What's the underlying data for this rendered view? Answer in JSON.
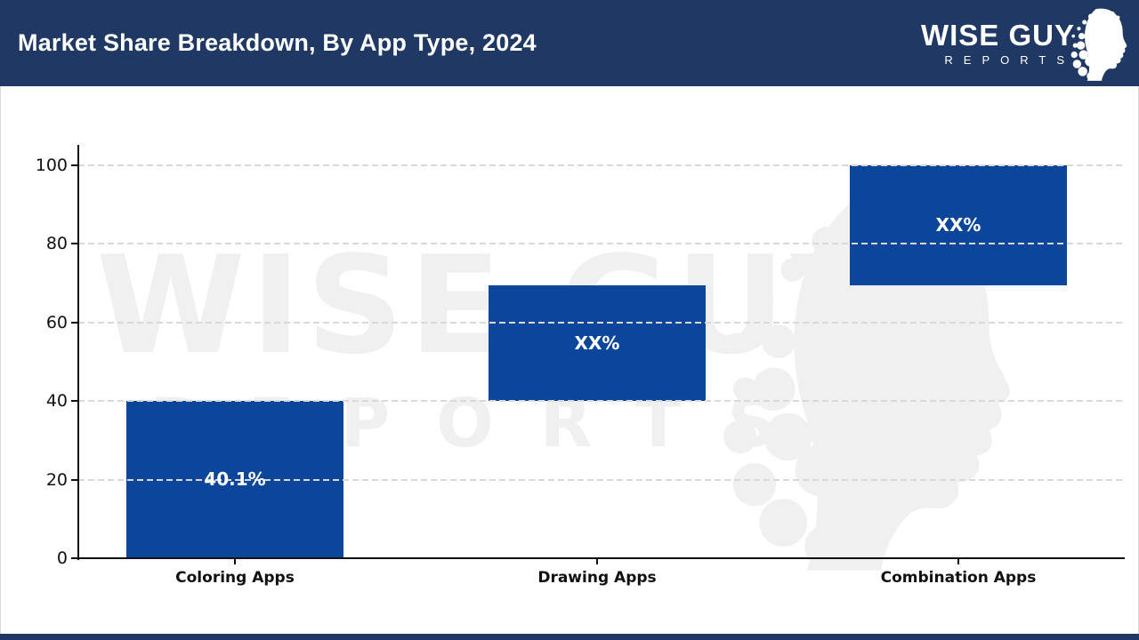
{
  "header": {
    "title": "Market Share Breakdown, By App Type, 2024",
    "logo": {
      "line1": "WISE GUY",
      "line2": "REPORTS"
    }
  },
  "watermark": {
    "line1": "WISE GUY",
    "line2": "REPORTS"
  },
  "chart_data": {
    "type": "bar",
    "subtype": "floating-waterfall",
    "title": "Market Share Breakdown, By App Type, 2024",
    "categories": [
      "Coloring Apps",
      "Drawing Apps",
      "Combination Apps"
    ],
    "bars": [
      {
        "category": "Coloring Apps",
        "from": 0,
        "to": 40.1,
        "label": "40.1%"
      },
      {
        "category": "Drawing Apps",
        "from": 40.1,
        "to": 69.3,
        "label": "XX%"
      },
      {
        "category": "Combination Apps",
        "from": 69.3,
        "to": 100,
        "label": "XX%"
      }
    ],
    "ylim": [
      0,
      100
    ],
    "yticks": [
      0,
      20,
      40,
      60,
      80,
      100
    ],
    "grid": "horizontal-dashed",
    "legend": "none",
    "bar_color": "#0c469a",
    "bar_label_color": "#ffffff"
  },
  "colors": {
    "header_bg": "#1f3864",
    "footer_bg": "#1f3864",
    "bar": "#0c469a",
    "watermark": "#f0f0f0",
    "gridline": "#d9d9d9",
    "axis": "#111111"
  }
}
